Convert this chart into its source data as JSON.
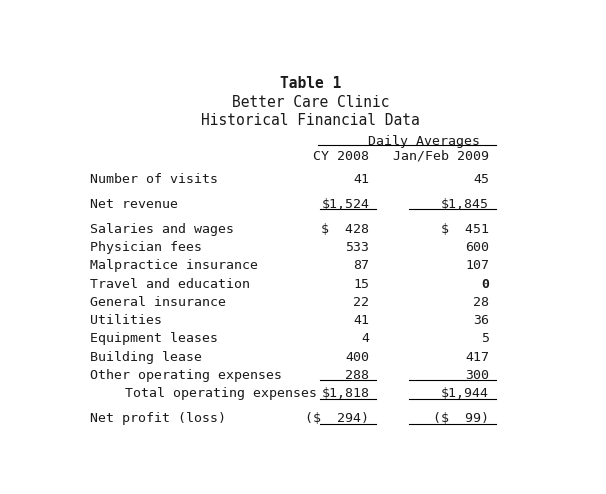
{
  "title_bold": "Table 1",
  "title_line2": "Better Care Clinic",
  "title_line3": "Historical Financial Data",
  "col_header_group": "Daily Averages",
  "col1_header": "CY 2008",
  "col2_header": "Jan/Feb 2009",
  "rows": [
    {
      "label": "Number of visits",
      "col1": "41",
      "col2": "45",
      "indent": 0,
      "ul1": false,
      "ul2": false,
      "bold_col2": false,
      "extra_after": true
    },
    {
      "label": "Net revenue",
      "col1": "$1,524",
      "col2": "$1,845",
      "indent": 0,
      "ul1": true,
      "ul2": true,
      "bold_col2": false,
      "extra_after": true
    },
    {
      "label": "Salaries and wages",
      "col1": "$  428",
      "col2": "$  451",
      "indent": 0,
      "ul1": false,
      "ul2": false,
      "bold_col2": false,
      "extra_after": false
    },
    {
      "label": "Physician fees",
      "col1": "533",
      "col2": "600",
      "indent": 0,
      "ul1": false,
      "ul2": false,
      "bold_col2": false,
      "extra_after": false
    },
    {
      "label": "Malpractice insurance",
      "col1": "87",
      "col2": "107",
      "indent": 0,
      "ul1": false,
      "ul2": false,
      "bold_col2": false,
      "extra_after": false
    },
    {
      "label": "Travel and education",
      "col1": "15",
      "col2": "0",
      "indent": 0,
      "ul1": false,
      "ul2": false,
      "bold_col2": true,
      "extra_after": false
    },
    {
      "label": "General insurance",
      "col1": "22",
      "col2": "28",
      "indent": 0,
      "ul1": false,
      "ul2": false,
      "bold_col2": false,
      "extra_after": false
    },
    {
      "label": "Utilities",
      "col1": "41",
      "col2": "36",
      "indent": 0,
      "ul1": false,
      "ul2": false,
      "bold_col2": false,
      "extra_after": false
    },
    {
      "label": "Equipment leases",
      "col1": "4",
      "col2": "5",
      "indent": 0,
      "ul1": false,
      "ul2": false,
      "bold_col2": false,
      "extra_after": false
    },
    {
      "label": "Building lease",
      "col1": "400",
      "col2": "417",
      "indent": 0,
      "ul1": false,
      "ul2": false,
      "bold_col2": false,
      "extra_after": false
    },
    {
      "label": "Other operating expenses",
      "col1": "288",
      "col2": "300",
      "indent": 0,
      "ul1": true,
      "ul2": true,
      "bold_col2": false,
      "extra_after": false
    },
    {
      "label": "  Total operating expenses",
      "col1": "$1,818",
      "col2": "$1,944",
      "indent": 1,
      "ul1": true,
      "ul2": true,
      "bold_col2": false,
      "extra_after": true
    },
    {
      "label": "Net profit (loss)",
      "col1": "($  294)",
      "col2": "($  99)",
      "indent": 0,
      "ul1": true,
      "ul2": true,
      "bold_col2": false,
      "extra_after": false
    }
  ],
  "bg_color": "#ffffff",
  "text_color": "#1a1a1a",
  "font_family": "DejaVu Sans Mono",
  "font_size": 9.5,
  "title_font_size": 10.5
}
